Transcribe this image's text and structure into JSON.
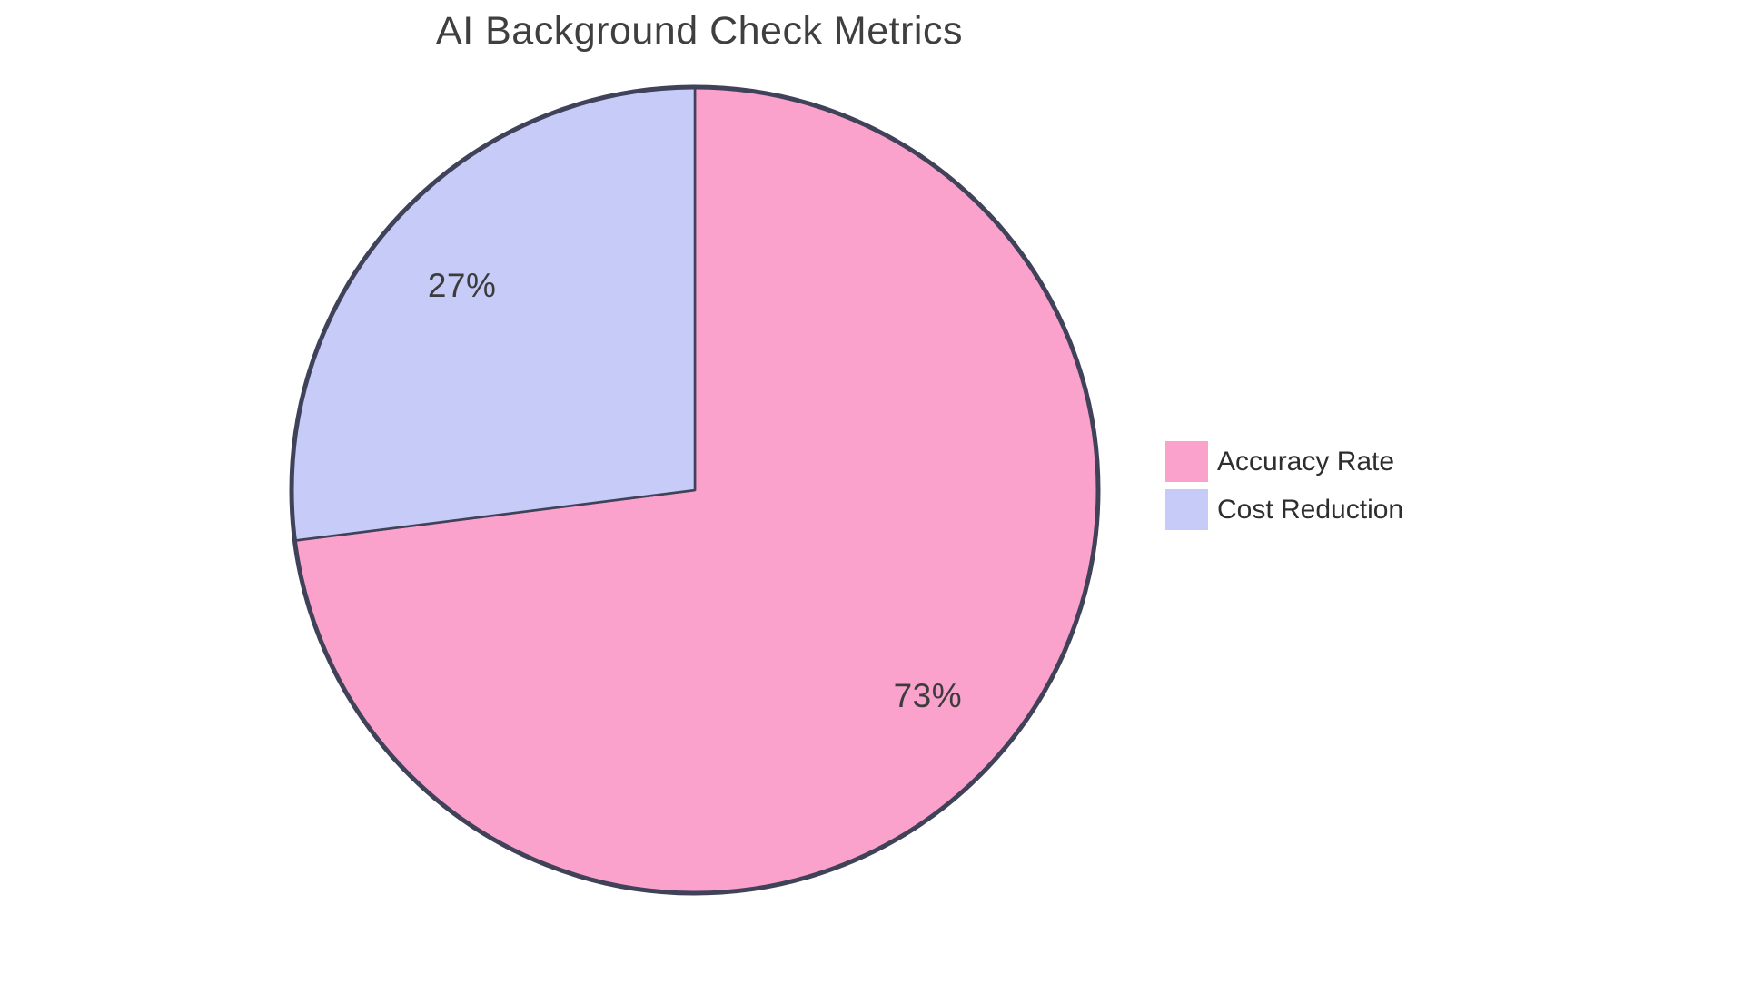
{
  "chart_data": {
    "type": "pie",
    "title": "AI Background Check Metrics",
    "slices": [
      {
        "label": "Accuracy Rate",
        "value": 73,
        "display": "73%",
        "color": "#FBA2CC"
      },
      {
        "label": "Cost Reduction",
        "value": 27,
        "display": "27%",
        "color": "#C7CBF8"
      }
    ],
    "start_angle_deg": 0,
    "direction": "clockwise",
    "stroke_color": "#3F4258",
    "label_color": "#3C3C3C",
    "title_color": "#3F3F3F",
    "legend_text_color": "#2E2E2E",
    "legend_position": "right",
    "background_color": "#FFFFFF"
  }
}
